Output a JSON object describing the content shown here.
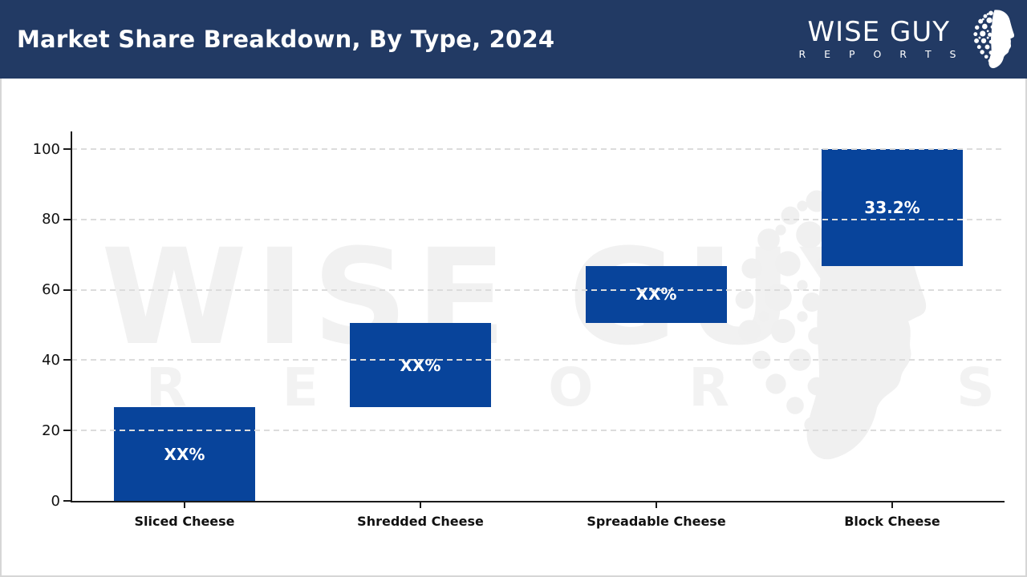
{
  "header": {
    "title": "Market Share Breakdown, By Type, 2024",
    "bg_color": "#223A64"
  },
  "logo": {
    "line1": "WISE GUY",
    "line2": "R E P O R T S",
    "head_icon": "dotted-face-profile"
  },
  "watermark": {
    "line1": "WISE GUY",
    "line2": "R E P O R T S",
    "head_icon": "dotted-face-profile"
  },
  "chart_data": {
    "type": "bar",
    "variant": "floating-waterfall",
    "title": "Market Share Breakdown, By Type, 2024",
    "xlabel": "",
    "ylabel": "",
    "categories": [
      "Sliced Cheese",
      "Shredded Cheese",
      "Spreadable Cheese",
      "Block Cheese"
    ],
    "segments": [
      {
        "category": "Sliced Cheese",
        "label": "XX%",
        "start": 0,
        "end": 26.6,
        "value": 26.6
      },
      {
        "category": "Shredded Cheese",
        "label": "XX%",
        "start": 26.6,
        "end": 50.6,
        "value": 24.0
      },
      {
        "category": "Spreadable Cheese",
        "label": "XX%",
        "start": 50.6,
        "end": 66.8,
        "value": 16.2
      },
      {
        "category": "Block Cheese",
        "label": "33.2%",
        "start": 66.8,
        "end": 100,
        "value": 33.2
      }
    ],
    "yticks": [
      0,
      20,
      40,
      60,
      80,
      100
    ],
    "ylim": [
      0,
      105
    ],
    "grid": "horizontal-dashed",
    "legend": "none",
    "bar_color": "#08449B",
    "bar_label_color": "#FFFFFF",
    "axis_color": "#1A1A1A",
    "grid_color": "#DCDCDC"
  }
}
